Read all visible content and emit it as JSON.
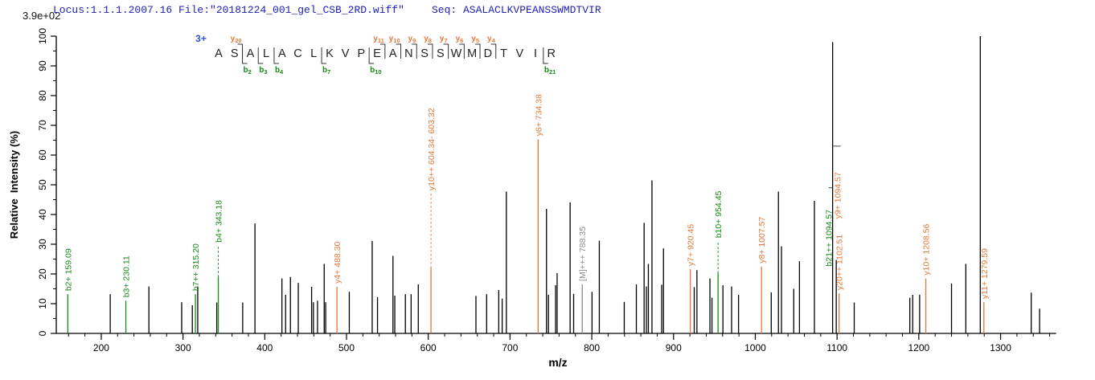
{
  "header": {
    "locus_file": "Locus:1.1.1.2007.16 File:\"20181224_001_gel_CSB_2RD.wiff\"",
    "seq": "Seq: ASALACLKVPEANSSWMDTVIR"
  },
  "scale_max_label": "3.9e+02",
  "precursor_charge": "3+",
  "colors": {
    "peak": "#000000",
    "y_ion": "#e5793a",
    "b_ion": "#178a17",
    "precursor": "#8a8a8a",
    "header_text": "#2121b5",
    "charge_text": "#2b50dd"
  },
  "sequence": {
    "residues": "ASALACLKVPEANSSWMDTVIR",
    "y_ions": [
      {
        "n": 20,
        "gap_after": 2
      },
      {
        "n": 11,
        "gap_after": 11
      },
      {
        "n": 10,
        "gap_after": 12
      },
      {
        "n": 9,
        "gap_after": 13
      },
      {
        "n": 8,
        "gap_after": 14
      },
      {
        "n": 7,
        "gap_after": 15
      },
      {
        "n": 6,
        "gap_after": 16
      },
      {
        "n": 5,
        "gap_after": 17
      },
      {
        "n": 4,
        "gap_after": 18
      }
    ],
    "b_ions": [
      {
        "n": 2,
        "gap_after": 2
      },
      {
        "n": 3,
        "gap_after": 3
      },
      {
        "n": 4,
        "gap_after": 4
      },
      {
        "n": 7,
        "gap_after": 7
      },
      {
        "n": 10,
        "gap_after": 10
      },
      {
        "n": 21,
        "gap_after": 21
      }
    ]
  },
  "chart_data": {
    "type": "bar",
    "subtype": "ms2-spectrum",
    "xlabel": "m/z",
    "ylabel": "Relative  Intensity (%)",
    "xlim": [
      145,
      1368
    ],
    "ylim": [
      0,
      100
    ],
    "x_major_ticks": [
      200,
      300,
      400,
      500,
      600,
      700,
      800,
      900,
      1000,
      1100,
      1200,
      1300
    ],
    "x_minor_step": 20,
    "y_major_step": 10,
    "y_minor_step": 5,
    "grid": false,
    "peaks": [
      {
        "mz": 159.09,
        "pct": 13.2,
        "s": "b",
        "label": "b2+ 159.09"
      },
      {
        "mz": 211.0,
        "pct": 13.2,
        "s": "k"
      },
      {
        "mz": 230.11,
        "pct": 11.0,
        "s": "b",
        "label": "b3+ 230.11"
      },
      {
        "mz": 258.3,
        "pct": 15.8,
        "s": "k"
      },
      {
        "mz": 298.4,
        "pct": 10.5,
        "s": "k"
      },
      {
        "mz": 311.4,
        "pct": 9.5,
        "s": "k"
      },
      {
        "mz": 315.2,
        "pct": 13.2,
        "s": "b",
        "label": "b7++ 315.20"
      },
      {
        "mz": 318.0,
        "pct": 15.8,
        "s": "k"
      },
      {
        "mz": 341.3,
        "pct": 10.4,
        "s": "k"
      },
      {
        "mz": 343.18,
        "pct": 19.0,
        "s": "b",
        "label": "b4+ 343.18",
        "label_at": 29.5
      },
      {
        "mz": 373.0,
        "pct": 10.4,
        "s": "k"
      },
      {
        "mz": 388.0,
        "pct": 37.0,
        "s": "k"
      },
      {
        "mz": 421.0,
        "pct": 18.5,
        "s": "k"
      },
      {
        "mz": 425.5,
        "pct": 13.0,
        "s": "k"
      },
      {
        "mz": 431.4,
        "pct": 19.0,
        "s": "k"
      },
      {
        "mz": 441.0,
        "pct": 17.0,
        "s": "k"
      },
      {
        "mz": 457.3,
        "pct": 15.7,
        "s": "k"
      },
      {
        "mz": 459.5,
        "pct": 10.5,
        "s": "k"
      },
      {
        "mz": 464.5,
        "pct": 11.0,
        "s": "k"
      },
      {
        "mz": 472.7,
        "pct": 23.4,
        "s": "k"
      },
      {
        "mz": 474.5,
        "pct": 10.5,
        "s": "k"
      },
      {
        "mz": 488.3,
        "pct": 15.7,
        "s": "y",
        "label": "y4+ 488.30"
      },
      {
        "mz": 503.4,
        "pct": 14.0,
        "s": "k"
      },
      {
        "mz": 531.4,
        "pct": 31.1,
        "s": "k"
      },
      {
        "mz": 537.9,
        "pct": 12.2,
        "s": "k"
      },
      {
        "mz": 556.8,
        "pct": 26.1,
        "s": "k"
      },
      {
        "mz": 559.0,
        "pct": 12.7,
        "s": "k"
      },
      {
        "mz": 572.0,
        "pct": 13.2,
        "s": "k"
      },
      {
        "mz": 579.0,
        "pct": 13.2,
        "s": "k"
      },
      {
        "mz": 587.8,
        "pct": 16.5,
        "s": "k"
      },
      {
        "mz": 603.32,
        "pct": 22.0,
        "s": "y",
        "label": "y10++ 604.34- 603.32",
        "label_at": 47
      },
      {
        "mz": 658.3,
        "pct": 12.6,
        "s": "k"
      },
      {
        "mz": 671.4,
        "pct": 13.2,
        "s": "k"
      },
      {
        "mz": 686.2,
        "pct": 14.6,
        "s": "k"
      },
      {
        "mz": 690.4,
        "pct": 11.7,
        "s": "k"
      },
      {
        "mz": 695.5,
        "pct": 47.7,
        "s": "k"
      },
      {
        "mz": 734.38,
        "pct": 65.3,
        "s": "y",
        "label": "y6+ 734.38"
      },
      {
        "mz": 744.6,
        "pct": 41.9,
        "s": "k"
      },
      {
        "mz": 747.0,
        "pct": 13.0,
        "s": "k"
      },
      {
        "mz": 755.7,
        "pct": 16.2,
        "s": "k"
      },
      {
        "mz": 757.6,
        "pct": 20.3,
        "s": "k"
      },
      {
        "mz": 773.5,
        "pct": 44.1,
        "s": "k"
      },
      {
        "mz": 777.8,
        "pct": 13.3,
        "s": "k"
      },
      {
        "mz": 788.35,
        "pct": 16.5,
        "s": "M",
        "label": "[M]+++ 788.35"
      },
      {
        "mz": 800.3,
        "pct": 14.0,
        "s": "k"
      },
      {
        "mz": 809.2,
        "pct": 31.2,
        "s": "k"
      },
      {
        "mz": 839.7,
        "pct": 10.6,
        "s": "k"
      },
      {
        "mz": 854.5,
        "pct": 16.5,
        "s": "k"
      },
      {
        "mz": 864.0,
        "pct": 37.2,
        "s": "k"
      },
      {
        "mz": 866.8,
        "pct": 15.8,
        "s": "k"
      },
      {
        "mz": 869.2,
        "pct": 23.4,
        "s": "k"
      },
      {
        "mz": 873.6,
        "pct": 51.5,
        "s": "k"
      },
      {
        "mz": 885.5,
        "pct": 16.4,
        "s": "k"
      },
      {
        "mz": 887.7,
        "pct": 28.6,
        "s": "k"
      },
      {
        "mz": 920.45,
        "pct": 21.6,
        "s": "y",
        "label": "y7+ 920.45"
      },
      {
        "mz": 925.3,
        "pct": 15.6,
        "s": "k"
      },
      {
        "mz": 928.6,
        "pct": 21.3,
        "s": "k"
      },
      {
        "mz": 944.5,
        "pct": 18.5,
        "s": "k"
      },
      {
        "mz": 947.0,
        "pct": 12.0,
        "s": "k"
      },
      {
        "mz": 954.45,
        "pct": 20.3,
        "s": "b",
        "label": "b10+ 954.45",
        "label_at": 31
      },
      {
        "mz": 960.4,
        "pct": 16.2,
        "s": "k"
      },
      {
        "mz": 971.0,
        "pct": 15.8,
        "s": "k"
      },
      {
        "mz": 979.5,
        "pct": 13.0,
        "s": "k"
      },
      {
        "mz": 1007.57,
        "pct": 22.5,
        "s": "y",
        "label": "y8+ 1007.57"
      },
      {
        "mz": 1019.5,
        "pct": 13.8,
        "s": "k"
      },
      {
        "mz": 1028.3,
        "pct": 47.7,
        "s": "k"
      },
      {
        "mz": 1032.0,
        "pct": 29.3,
        "s": "k"
      },
      {
        "mz": 1047.0,
        "pct": 15.0,
        "s": "k"
      },
      {
        "mz": 1054.0,
        "pct": 24.3,
        "s": "k"
      },
      {
        "mz": 1072.3,
        "pct": 44.6,
        "s": "k"
      },
      {
        "mz": 1094.57,
        "pct": 98.0,
        "s": "k"
      },
      {
        "mz": 1099.0,
        "pct": 24.7,
        "s": "k"
      },
      {
        "mz": 1102.51,
        "pct": 13.5,
        "s": "y",
        "label": "y20++ 1102.51"
      },
      {
        "mz": 1121.0,
        "pct": 10.4,
        "s": "k"
      },
      {
        "mz": 1189.0,
        "pct": 12.0,
        "s": "k"
      },
      {
        "mz": 1192.5,
        "pct": 13.0,
        "s": "k"
      },
      {
        "mz": 1201.0,
        "pct": 13.0,
        "s": "k"
      },
      {
        "mz": 1208.56,
        "pct": 18.5,
        "s": "y",
        "label": "y10+ 1208.56"
      },
      {
        "mz": 1240.0,
        "pct": 16.8,
        "s": "k"
      },
      {
        "mz": 1257.5,
        "pct": 23.4,
        "s": "k"
      },
      {
        "mz": 1275.2,
        "pct": 100.0,
        "s": "k"
      },
      {
        "mz": 1279.59,
        "pct": 10.5,
        "s": "y",
        "label": "y11+ 1279.59"
      },
      {
        "mz": 1337.5,
        "pct": 13.7,
        "s": "k"
      },
      {
        "mz": 1347.7,
        "pct": 8.3,
        "s": "k"
      }
    ],
    "float_labels": [
      {
        "text": "b21++ 1094.57",
        "s": "b",
        "mz": 1094.57,
        "dx": -4,
        "bottom_pct": 22,
        "connector_pct": 49
      },
      {
        "text": "y9+ 1094.57",
        "s": "y",
        "mz": 1094.57,
        "dx": 7,
        "bottom_pct": 38,
        "connector_pct": 63
      }
    ]
  }
}
